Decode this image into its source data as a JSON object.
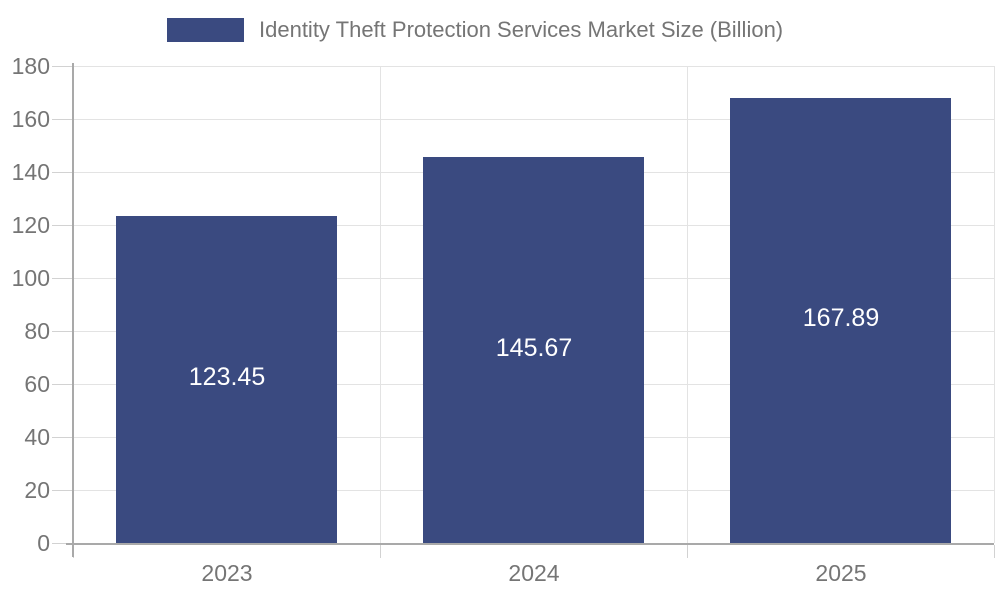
{
  "legend": {
    "label": "Identity Theft Protection Services Market Size (Billion)"
  },
  "chart_data": {
    "type": "bar",
    "title": "Identity Theft Protection Services Market Size (Billion)",
    "categories": [
      "2023",
      "2024",
      "2025"
    ],
    "values": [
      123.45,
      145.67,
      167.89
    ],
    "value_labels": [
      "123.45",
      "145.67",
      "167.89"
    ],
    "xlabel": "",
    "ylabel": "",
    "ylim": [
      0,
      180
    ],
    "yticks": [
      0,
      20,
      40,
      60,
      80,
      100,
      120,
      140,
      160,
      180
    ],
    "grid": true,
    "legend_position": "top-left",
    "bar_color": "#3A4A80",
    "value_label_color": "#ffffff"
  },
  "style": {
    "axis_text_color": "#757575",
    "legend_text_color": "#757575",
    "grid_color": "#e3e3e3",
    "tick_color": "#d2d2d2",
    "axis_line_color": "#a9a9a9",
    "background": "#ffffff"
  }
}
